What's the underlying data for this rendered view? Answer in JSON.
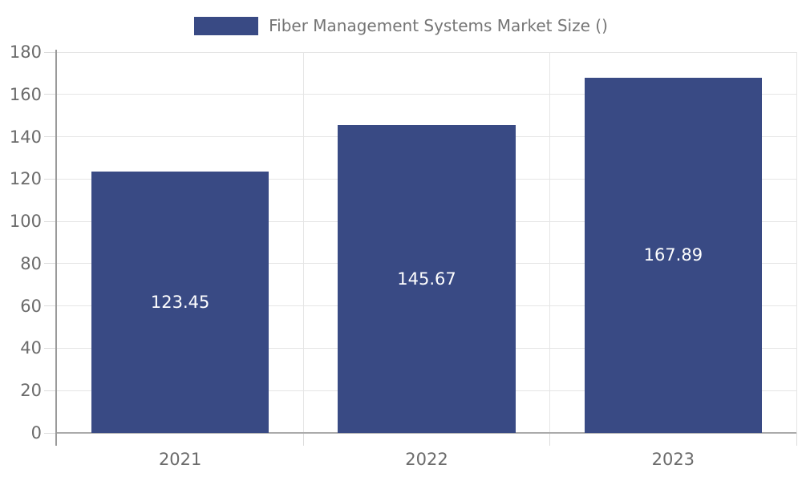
{
  "legend": {
    "label": "Fiber Management Systems Market Size ()"
  },
  "colors": {
    "bar": "#394a84",
    "grid": "#e5e5e5",
    "axis": "#9a9a9a",
    "baseline": "#ababab",
    "tick_mark": "#dcdcdc",
    "tick_label": "#6b6b6b",
    "legend_text": "#757575",
    "value_label": "#ffffff",
    "background": "#ffffff"
  },
  "chart_data": {
    "type": "bar",
    "title": "Fiber Management Systems Market Size ()",
    "categories": [
      "2021",
      "2022",
      "2023"
    ],
    "values": [
      123.45,
      145.67,
      167.89
    ],
    "value_labels": [
      "123.45",
      "145.67",
      "167.89"
    ],
    "xlabel": "",
    "ylabel": "",
    "ylim": [
      0,
      180
    ],
    "ytick_interval": 20,
    "yticks": [
      0,
      20,
      40,
      60,
      80,
      100,
      120,
      140,
      160,
      180
    ],
    "grid": true,
    "legend_position": "top-center",
    "bar_width_fraction": 0.72
  }
}
